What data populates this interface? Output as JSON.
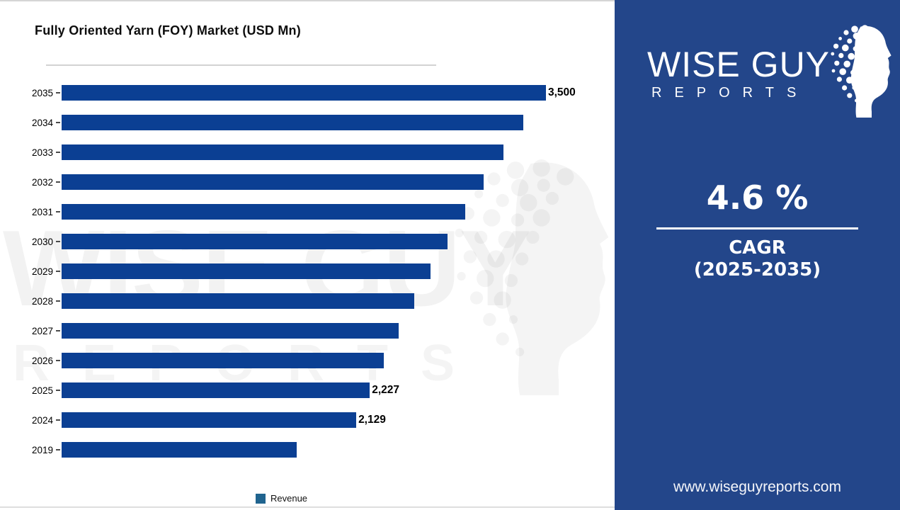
{
  "chart_data": {
    "type": "bar",
    "orientation": "horizontal",
    "title": "Fully Oriented Yarn (FOY) Market (USD Mn)",
    "categories": [
      "2035",
      "2034",
      "2033",
      "2032",
      "2031",
      "2030",
      "2029",
      "2028",
      "2027",
      "2026",
      "2025",
      "2024",
      "2019"
    ],
    "values": [
      3500,
      3338,
      3191,
      3051,
      2917,
      2788,
      2666,
      2549,
      2437,
      2329,
      2227,
      2129,
      1700
    ],
    "value_labels": {
      "2035": "3,500",
      "2025": "2,227",
      "2024": "2,129"
    },
    "series_name": "Revenue",
    "xlim": [
      0,
      3500
    ],
    "grid": false,
    "legend_position": "bottom",
    "bar_color": "#0b3f93",
    "legend_marker_color": "#20648f"
  },
  "legend": {
    "label": "Revenue"
  },
  "sidebar": {
    "bg_color": "#23468a",
    "logo_line1": "WISE GUY",
    "logo_line2": "REPORTS",
    "cagr_value": "4.6 %",
    "cagr_line1": "CAGR",
    "cagr_line2": "(2025-2035)",
    "website": "www.wiseguyreports.com"
  },
  "watermark": {
    "line1": "WISE GUY",
    "line2": "REPORTS"
  }
}
